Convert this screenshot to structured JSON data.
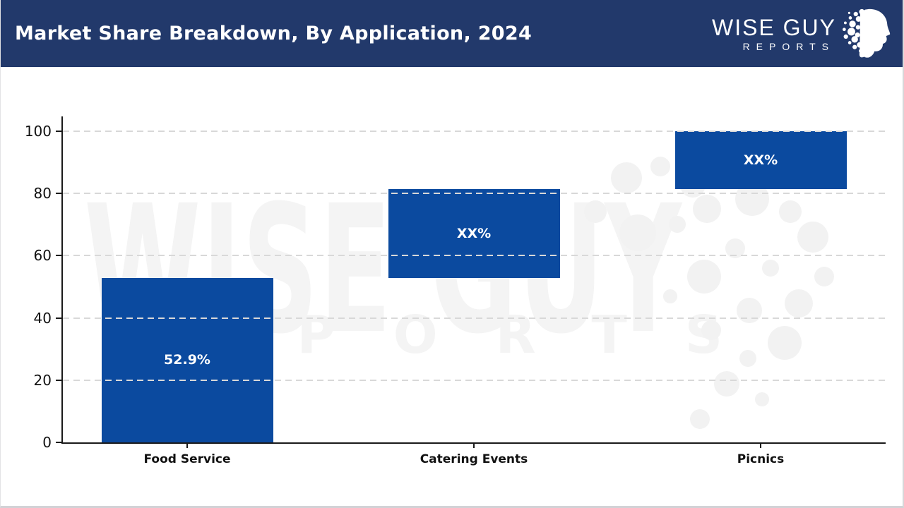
{
  "header": {
    "title": "Market Share Breakdown, By Application, 2024",
    "background_color": "#22396b",
    "logo": {
      "primary": "WISE GUY",
      "secondary": "REPORTS"
    }
  },
  "watermark": {
    "primary": "WISE GUY",
    "secondary": "REPORTS"
  },
  "chart_data": {
    "type": "bar",
    "subtype": "floating-stacked-percentage",
    "title": "Market Share Breakdown, By Application, 2024",
    "categories": [
      "Food Service",
      "Catering Events",
      "Picnics"
    ],
    "segments": [
      {
        "category": "Food Service",
        "start": 0,
        "end": 52.9,
        "value": 52.9,
        "label": "52.9%"
      },
      {
        "category": "Catering Events",
        "start": 52.9,
        "end": 81.5,
        "value": 28.6,
        "label": "XX%"
      },
      {
        "category": "Picnics",
        "start": 81.5,
        "end": 100,
        "value": 18.5,
        "label": "XX%"
      }
    ],
    "xlabel": "",
    "ylabel": "",
    "ylim": [
      0,
      100
    ],
    "yticks": [
      0,
      20,
      40,
      60,
      80,
      100
    ],
    "grid": {
      "axis": "y",
      "style": "dashed",
      "color": "#d8d8d8"
    },
    "bar_color": "#0b4a9f",
    "bar_label_color": "#ffffff",
    "axis_color": "#1a1a1a",
    "legend": "none"
  }
}
